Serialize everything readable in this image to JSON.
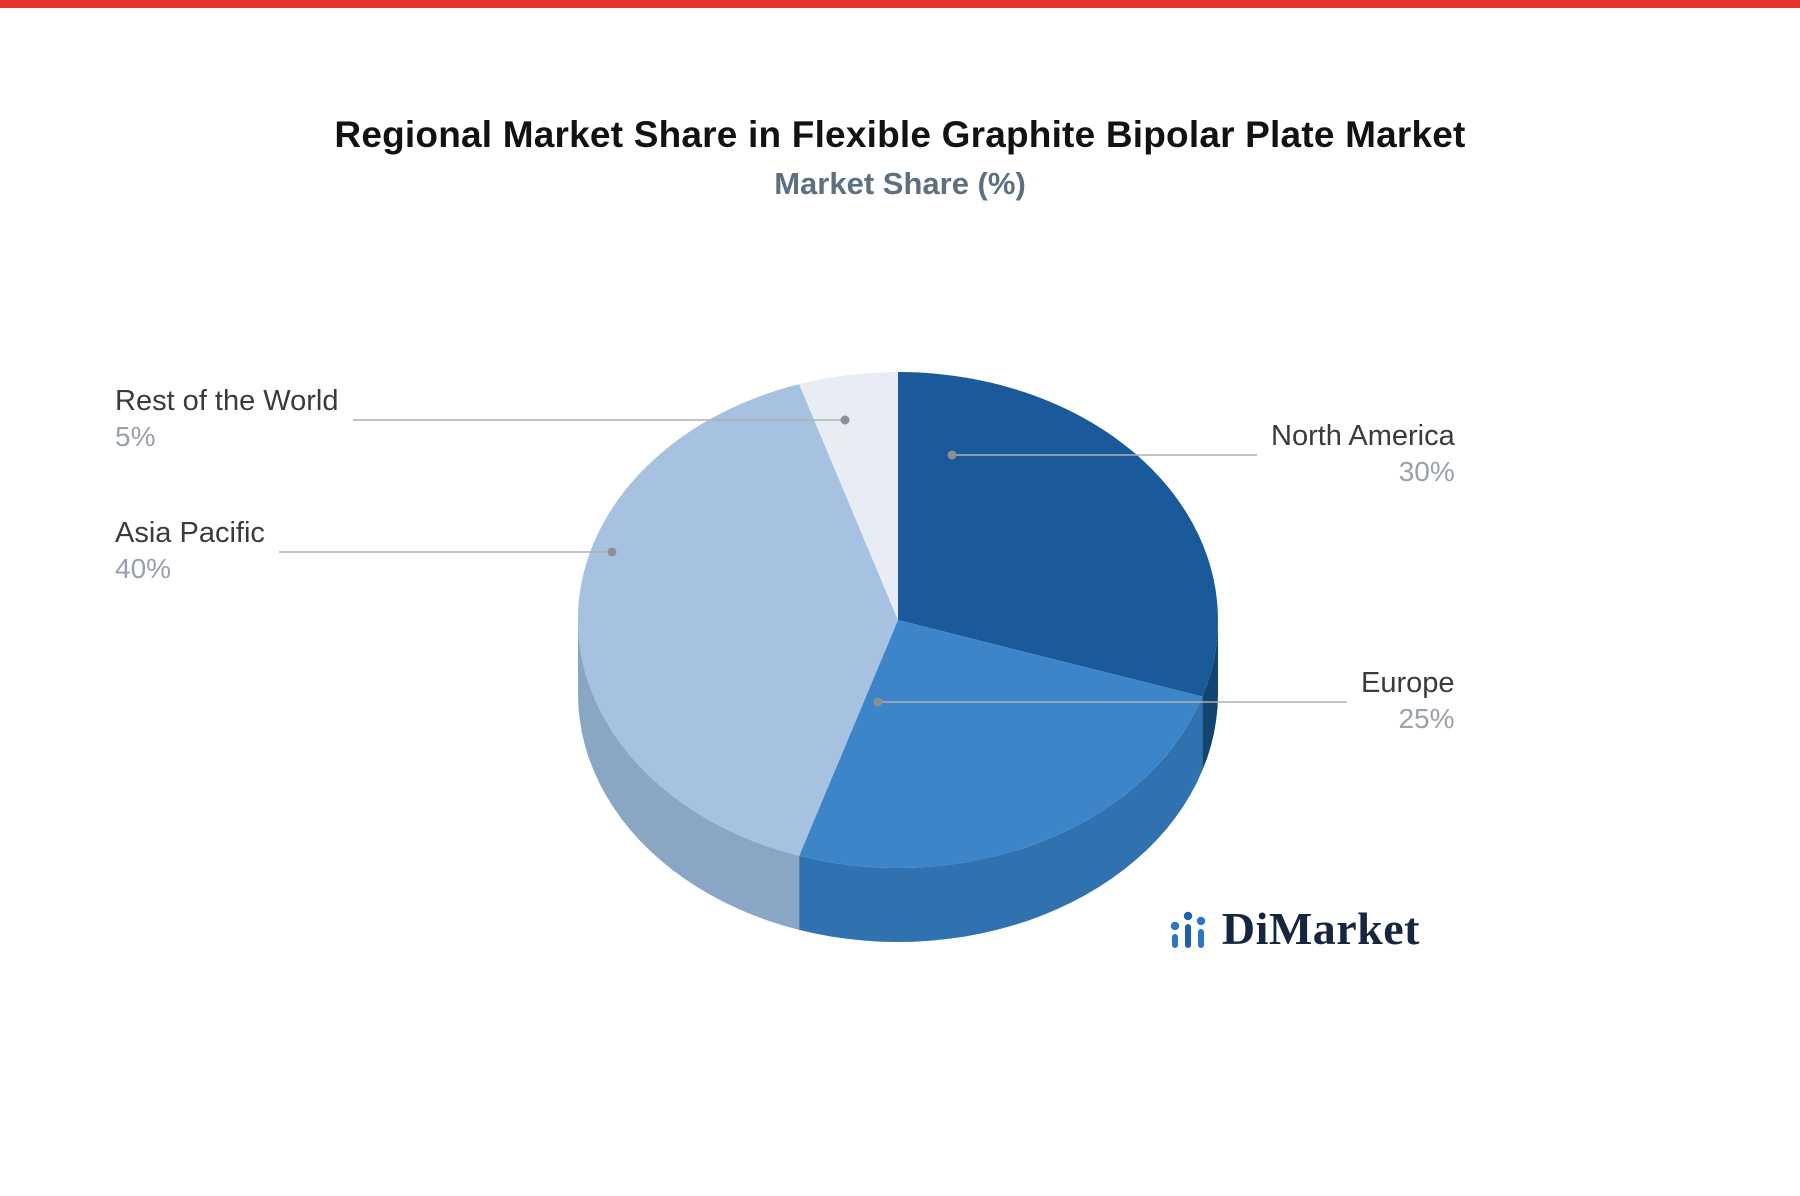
{
  "page": {
    "top_bar_color": "#e8332a",
    "background_color": "#ffffff"
  },
  "chart_data": {
    "type": "pie",
    "title": "Regional Market Share in Flexible Graphite Bipolar Plate Market",
    "subtitle": "Market Share (%)",
    "categories": [
      "North America",
      "Europe",
      "Asia Pacific",
      "Rest of the World"
    ],
    "values": [
      30,
      25,
      40,
      5
    ],
    "value_labels": [
      "30%",
      "25%",
      "40%",
      "5%"
    ],
    "colors": [
      "#1a5a9a",
      "#3c85c9",
      "#a6c2e0",
      "#e8edf5"
    ],
    "side_colors": [
      "#134572",
      "#3071b0",
      "#8aa6c5",
      "#c5d2e3"
    ],
    "start_angle": "top",
    "direction": "clockwise",
    "style": "3d",
    "legend_position": "none",
    "labels_color": "#3b3b3b",
    "values_color": "#9aa1a9",
    "leader_line_color": "#b0b0b0",
    "leader_dot_color": "#8a8f94"
  },
  "branding": {
    "logo_text": "DiMarket",
    "logo_icon": "bar-chart-dots-icon",
    "logo_text_color": "#15263e",
    "logo_icon_color": "#2d76c4"
  }
}
